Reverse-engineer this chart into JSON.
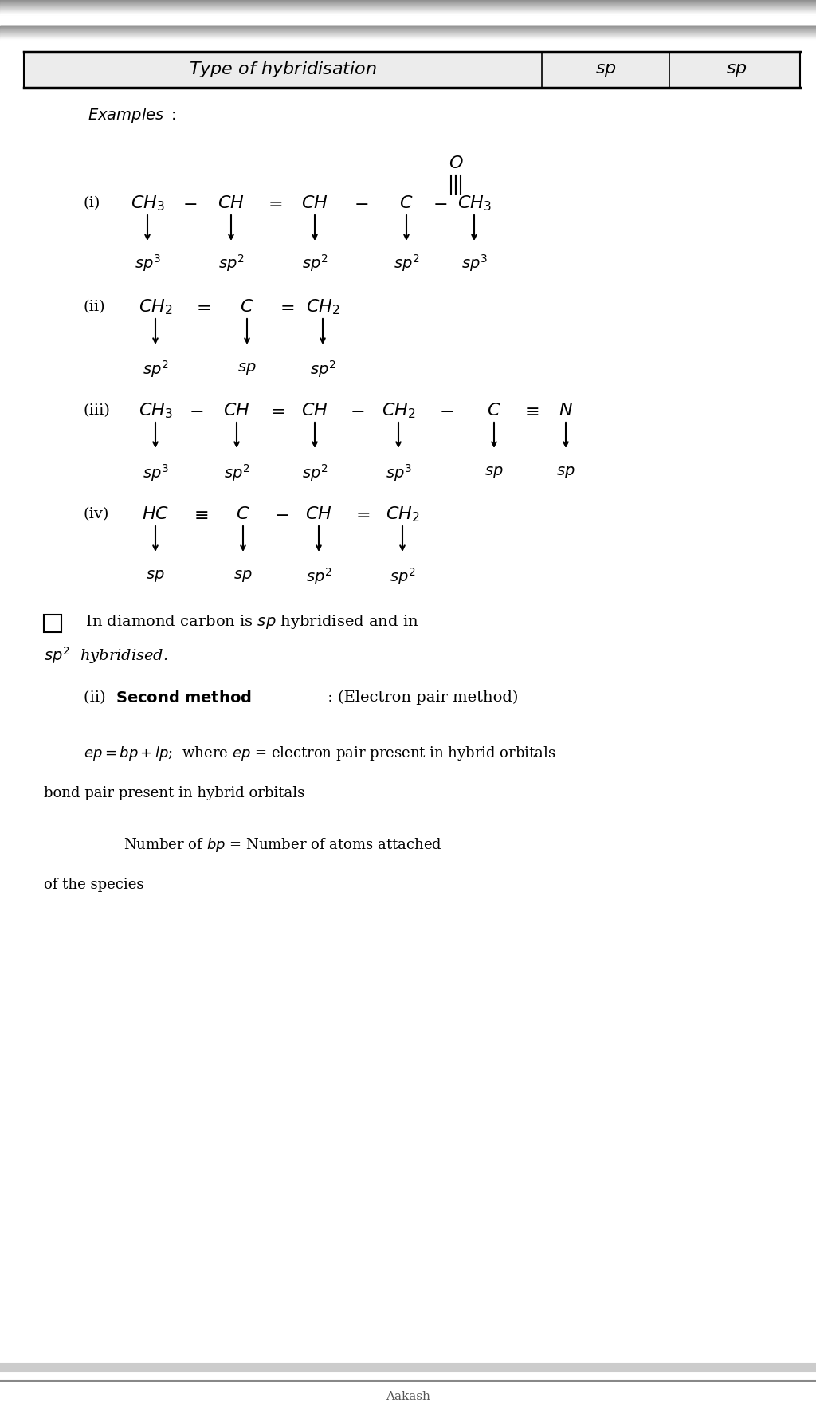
{
  "bg_color": "#ffffff",
  "table_header_bg": "#e8e8e8",
  "table_border_color": "#000000",
  "title_row": [
    "Type of hybridisation",
    "sp",
    "sp"
  ],
  "examples_label": "Examples :",
  "example1_formula": "(i)  $\\mathit{CH_3} - \\mathit{CH} = \\mathit{CH} - \\mathit{C} - \\mathit{CH_3}$",
  "example1_hyb": [
    "$sp^3$",
    "$sp^2$",
    "$sp^2$",
    "$sp^2$",
    "$sp^3$"
  ],
  "example2_formula": "(ii)  $\\mathit{CH_2} = \\mathit{C} = \\mathit{CH_2}$",
  "example2_hyb": [
    "$sp^2$",
    "$sp$",
    "$sp^2$"
  ],
  "example3_formula": "(iii)   $\\mathit{CH_3} - \\mathit{CH} = \\mathit{CH} - \\mathit{CH_2} - \\mathit{C} \\equiv \\mathit{N}$",
  "example3_hyb": [
    "$sp^3$",
    "$sp^2$",
    "$sp^2$",
    "$sp^3$",
    "$sp$",
    "$sp$"
  ],
  "example4_formula": "(iv)  $\\mathit{HC} \\equiv \\mathit{C} - \\mathit{CH} = \\mathit{CH_2}$",
  "example4_hyb": [
    "$sp$",
    "$sp$",
    "$sp^2$",
    "$sp^2$"
  ],
  "note_text1": "□   In diamond carbon is ",
  "note_sp": "sp",
  "note_text2": " hybridised and in",
  "note_line2_start": "$sp^2$",
  "note_line2_end": " hybridised.",
  "section2_title": "(ii) ",
  "section2_bold": "Second method",
  "section2_rest": " : (Electron pair method)",
  "ep_line": "$ep = bp + lp$;  where $ep$ = electron pair present in hybrid orbitals",
  "ep_line2": "bond pair present in hybrid orbitals",
  "num_bp_line": "Number of $bp$ = Number of atoms attached",
  "num_bp_line2": "of the species"
}
